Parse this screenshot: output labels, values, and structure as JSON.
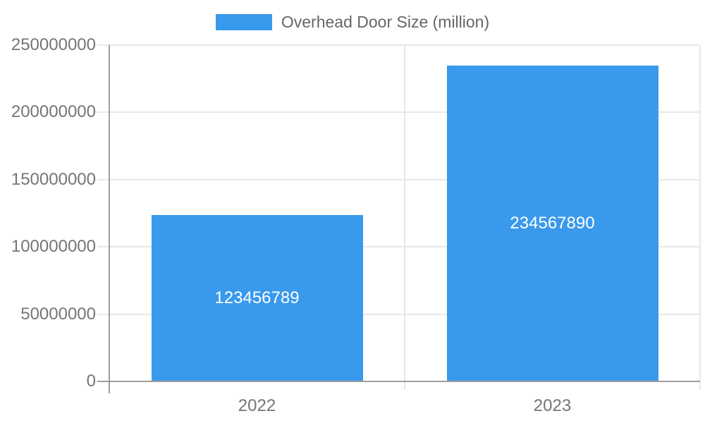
{
  "chart_data": {
    "type": "bar",
    "title": "Overhead Door Size (million)",
    "legend": {
      "position": "top",
      "entries": [
        "Overhead Door Size (million)"
      ]
    },
    "categories": [
      "2022",
      "2023"
    ],
    "series": [
      {
        "name": "Overhead Door Size (million)",
        "values": [
          123456789,
          234567890
        ]
      }
    ],
    "bar_value_labels": [
      "123456789",
      "234567890"
    ],
    "ylim": [
      0,
      250000000
    ],
    "yticks": [
      0,
      50000000,
      100000000,
      150000000,
      200000000,
      250000000
    ],
    "ytick_labels": [
      "0",
      "50000000",
      "100000000",
      "150000000",
      "200000000",
      "250000000"
    ],
    "xlabel": "",
    "ylabel": "",
    "grid": true,
    "colors": {
      "bar": "#3999EC",
      "axis": "#9E9E9E",
      "gridline": "#E8E8E8",
      "tick_text": "#757575",
      "legend_text": "#666666",
      "value_label_text": "#FFFFFF",
      "background": "#FFFFFF"
    }
  }
}
